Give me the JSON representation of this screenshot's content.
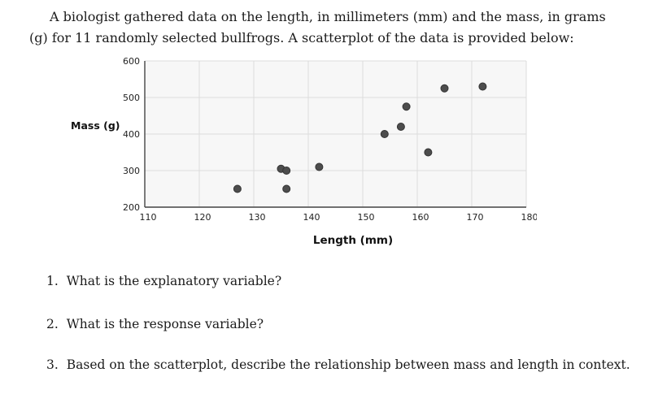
{
  "intro_paragraph": "A biologist gathered data on the length, in millimeters (mm) and the mass, in grams (g) for 11 randomly selected bullfrogs. A scatterplot of the data is provided below:",
  "questions": [
    {
      "number": "1.",
      "text": "What is the explanatory variable?"
    },
    {
      "number": "2.",
      "text": "What is the response variable?"
    },
    {
      "number": "3.",
      "text": "Based on the scatterplot, describe the relationship between mass and length in context."
    }
  ],
  "chart_data": {
    "type": "scatter",
    "title": "",
    "xlabel": "Length (mm)",
    "ylabel": "Mass (g)",
    "xlim": [
      110,
      180
    ],
    "ylim": [
      200,
      600
    ],
    "xticks": [
      110,
      120,
      130,
      140,
      150,
      160,
      170,
      180
    ],
    "yticks": [
      200,
      300,
      400,
      500,
      600
    ],
    "grid": true,
    "legend": "none",
    "n_points": 11,
    "points": [
      {
        "x": 127,
        "y": 250
      },
      {
        "x": 135,
        "y": 305
      },
      {
        "x": 136,
        "y": 300
      },
      {
        "x": 136,
        "y": 250
      },
      {
        "x": 142,
        "y": 310
      },
      {
        "x": 154,
        "y": 400
      },
      {
        "x": 157,
        "y": 420
      },
      {
        "x": 158,
        "y": 475
      },
      {
        "x": 162,
        "y": 350
      },
      {
        "x": 165,
        "y": 525
      },
      {
        "x": 172,
        "y": 530
      }
    ],
    "colors": {
      "point": "#4d4d4d",
      "point_edge": "#333333",
      "grid": "#dcdcdc",
      "axis": "#444444",
      "plot_bg": "#f7f7f7",
      "tick_text": "#222222"
    }
  }
}
